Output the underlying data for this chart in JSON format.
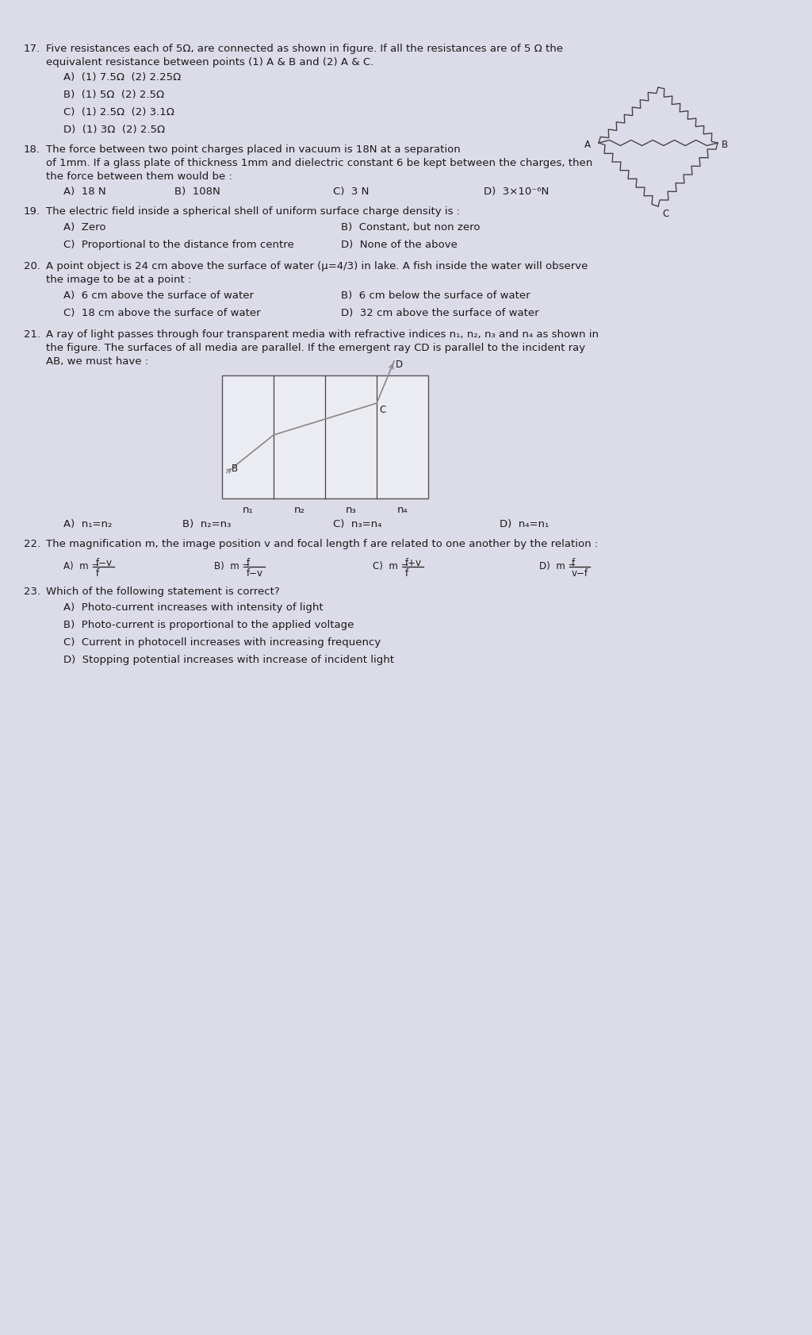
{
  "bg_color": "#dcdce8",
  "text_color": "#1a1a1a",
  "body_fontsize": 9.5,
  "small_fontsize": 8.5,
  "q17": {
    "num": "17.",
    "text": "Five resistances each of 5Ω, are connected as shown in figure. If all the resistances are of 5 Ω the equivalent resistance between points (1) A & B and (2) A & C.",
    "opts": [
      "A)  (1) 7.5Ω  (2) 2.25Ω",
      "B)  (1) 5Ω  (2) 2.5Ω",
      "C)  (1) 2.5Ω  (2) 3.1Ω",
      "D)  (1) 3Ω  (2) 2.5Ω"
    ]
  },
  "q18": {
    "num": "18.",
    "text": "The force between two point charges placed in vacuum is 18N at a separation of 1mm. If a glass plate of thickness 1mm and dielectric constant 6 be kept between the charges, then the force between them would be :",
    "opts": [
      "A)  18 N",
      "B)  108N",
      "C)  3 N",
      "D)  3×10⁻⁶N"
    ]
  },
  "q19": {
    "num": "19.",
    "text": "The electric field inside a spherical shell of uniform surface charge density is :",
    "opts_2col": [
      [
        "A)  Zero",
        "B)  Constant, but non zero"
      ],
      [
        "C)  Proportional to the distance from centre",
        "D)  None of the above"
      ]
    ]
  },
  "q20": {
    "num": "20.",
    "text": "A point object is 24 cm above the surface of water (μ=4/3) in lake. A fish inside the water will observe the image to be at a point :",
    "opts_2col": [
      [
        "A)  6 cm above the surface of water",
        "B)  6 cm below the surface of water"
      ],
      [
        "C)  18 cm above the surface of water",
        "D)  32 cm above the surface of water"
      ]
    ]
  },
  "q21": {
    "num": "21.",
    "text": "A ray of light passes through four transparent media with refractive indices n₁, n₂, n₃ and n₄ as shown in the figure. The surfaces of all media are parallel. If the emergent ray CD is parallel to the incident ray AB, we must have :",
    "opts": [
      "A)  n₁=n₂",
      "B)  n₂=n₃",
      "C)  n₃=n₄",
      "D)  n₄=n₁"
    ]
  },
  "q22": {
    "num": "22.",
    "text": "The magnification m, the image position v and focal length f are related to one another by the relation :",
    "opts_frac": [
      {
        "pre": "A)  m =",
        "num": "f−v",
        "den": "f"
      },
      {
        "pre": "B)  m =",
        "num": "f",
        "den": "f−v"
      },
      {
        "pre": "C)  m =",
        "num": "f+v",
        "den": "f"
      },
      {
        "pre": "D)  m =",
        "num": "f",
        "den": "v−f"
      }
    ]
  },
  "q23": {
    "num": "23.",
    "text": "Which of the following statement is correct?",
    "opts": [
      "A)  Photo-current increases with intensity of light",
      "B)  Photo-current is proportional to the applied voltage",
      "C)  Current in photocell increases with increasing frequency",
      "D)  Stopping potential increases with increase of incident light"
    ]
  }
}
